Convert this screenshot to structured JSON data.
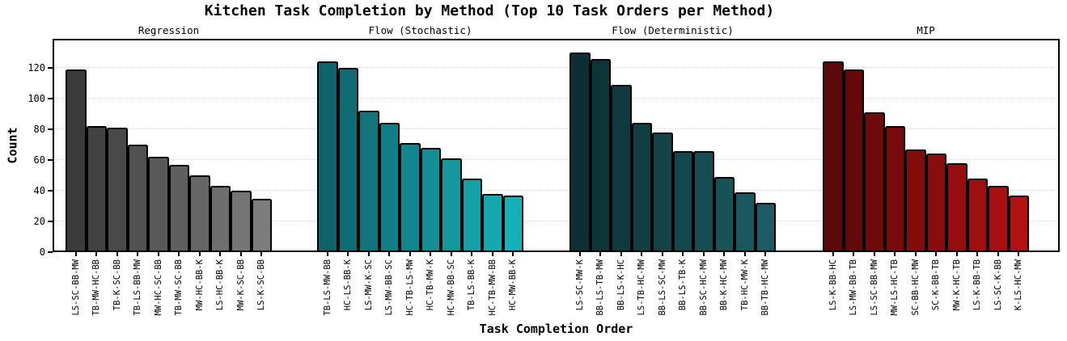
{
  "chart_data": {
    "type": "bar",
    "title": "Kitchen Task Completion by Method (Top 10 Task Orders per Method)",
    "xlabel": "Task Completion Order",
    "ylabel": "Count",
    "ylim": [
      0,
      139
    ],
    "y_ticks": [
      0,
      20,
      40,
      60,
      80,
      100,
      120
    ],
    "grid": "horizontal-dotted",
    "legend": "none",
    "grid_color": "#ddd4d4",
    "bar_edge_color": "#000000",
    "groups": [
      {
        "name": "Regression",
        "color_start": "#3b3b3b",
        "color_end": "#7c7c7c",
        "categories": [
          "LS-SC-BB-MW",
          "TB-MW-HC-BB",
          "TB-K-SC-BB",
          "TB-LS-BB-MW",
          "MW-HC-SC-BB",
          "TB-MW-SC-BB",
          "MW-HC-BB-K",
          "LS-HC-BB-K",
          "MW-K-SC-BB",
          "LS-K-SC-BB"
        ],
        "values": [
          119,
          82,
          81,
          70,
          62,
          57,
          50,
          43,
          40,
          35
        ]
      },
      {
        "name": "Flow (Stochastic)",
        "color_start": "#0f636a",
        "color_end": "#16b1b7",
        "categories": [
          "TB-LS-MW-BB",
          "HC-LS-BB-K",
          "LS-MW-K-SC",
          "LS-MW-BB-SC",
          "HC-TB-LS-MW",
          "HC-TB-MW-K",
          "HC-MW-BB-SC",
          "TB-LS-BB-K",
          "HC-TB-MW-BB",
          "HC-MW-BB-K"
        ],
        "values": [
          124,
          120,
          92,
          84,
          71,
          68,
          61,
          48,
          38,
          37
        ]
      },
      {
        "name": "Flow (Deterministic)",
        "color_start": "#0b2f33",
        "color_end": "#1a5c61",
        "categories": [
          "LS-SC-MW-K",
          "BB-LS-TB-MW",
          "BB-LS-K-HC",
          "LS-TB-HC-MW",
          "BB-LS-SC-MW",
          "BB-LS-TB-K",
          "BB-SC-HC-MW",
          "BB-K-HC-MW",
          "TB-HC-MW-K",
          "BB-TB-HC-MW"
        ],
        "values": [
          130,
          126,
          109,
          84,
          78,
          66,
          66,
          49,
          39,
          32
        ]
      },
      {
        "name": "MIP",
        "color_start": "#5a0808",
        "color_end": "#b11111",
        "categories": [
          "LS-K-BB-HC",
          "LS-MW-BB-TB",
          "LS-SC-BB-MW",
          "MW-LS-HC-TB",
          "SC-BB-HC-MW",
          "SC-K-BB-TB",
          "MW-K-HC-TB",
          "LS-K-BB-TB",
          "LS-SC-K-BB",
          "K-LS-HC-MW"
        ],
        "values": [
          124,
          119,
          91,
          82,
          67,
          64,
          58,
          48,
          43,
          37
        ]
      }
    ]
  }
}
